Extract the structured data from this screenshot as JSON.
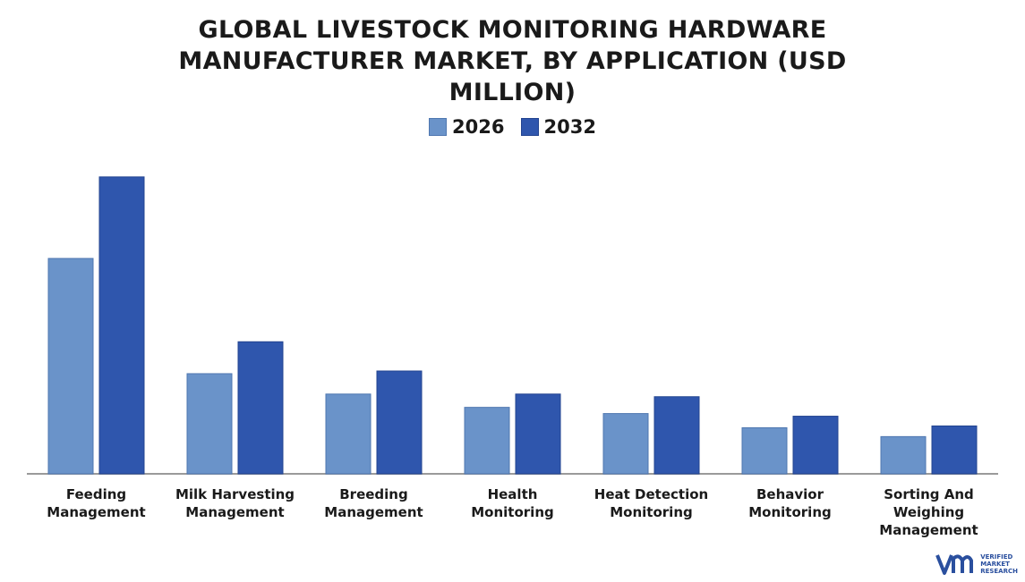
{
  "chart_data": {
    "type": "bar",
    "title_lines": [
      "GLOBAL LIVESTOCK MONITORING HARDWARE",
      "MANUFACTURER MARKET, BY APPLICATION (USD",
      "MILLION)"
    ],
    "categories": [
      [
        "Feeding",
        "Management"
      ],
      [
        "Milk Harvesting",
        "Management"
      ],
      [
        "Breeding",
        "Management"
      ],
      [
        "Health",
        "Monitoring"
      ],
      [
        "Heat Detection",
        "Monitoring"
      ],
      [
        "Behavior",
        "Monitoring"
      ],
      [
        "Sorting And",
        "Weighing",
        "Management"
      ]
    ],
    "series": [
      {
        "name": "2026",
        "color": "#6a93c9",
        "values": [
          243,
          113,
          90,
          75,
          68,
          52,
          42
        ]
      },
      {
        "name": "2032",
        "color": "#2f56ad",
        "values": [
          335,
          149,
          116,
          90,
          87,
          65,
          54
        ]
      }
    ],
    "ylim": [
      0,
      350
    ],
    "legend_position": "top-center",
    "grid": false
  },
  "brand": {
    "logo_lines": [
      "VERIFIED",
      "MARKET",
      "RESEARCH"
    ],
    "color": "#2a4f9e"
  }
}
